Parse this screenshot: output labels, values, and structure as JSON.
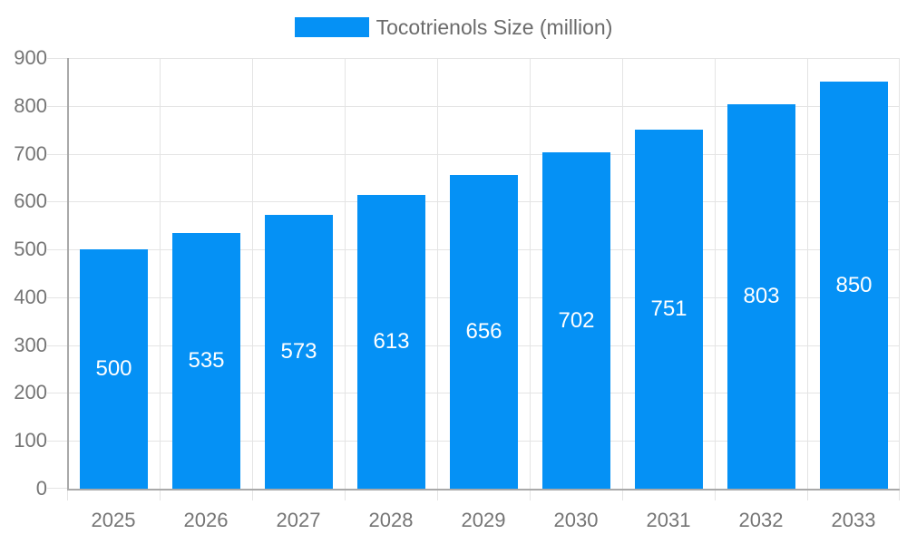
{
  "legend": {
    "label": "Tocotrienols Size (million)"
  },
  "chart_data": {
    "type": "bar",
    "categories": [
      "2025",
      "2026",
      "2027",
      "2028",
      "2029",
      "2030",
      "2031",
      "2032",
      "2033"
    ],
    "series": [
      {
        "name": "Tocotrienols Size (million)",
        "values": [
          500,
          535,
          573,
          613,
          656,
          702,
          751,
          803,
          850
        ]
      }
    ],
    "bar_value_labels_shown": true,
    "yticks": [
      0,
      100,
      200,
      300,
      400,
      500,
      600,
      700,
      800,
      900
    ],
    "ylim": [
      0,
      900
    ],
    "grid": true,
    "legend_position": "top"
  },
  "colors": {
    "bar": "#0591F5",
    "grid_line": "#e4e4e4",
    "axis_line": "#a9a9a9",
    "axis_label_text": "#757575",
    "legend_text": "#6b6b6b",
    "bar_label_text": "#ffffff",
    "background": "#ffffff"
  }
}
